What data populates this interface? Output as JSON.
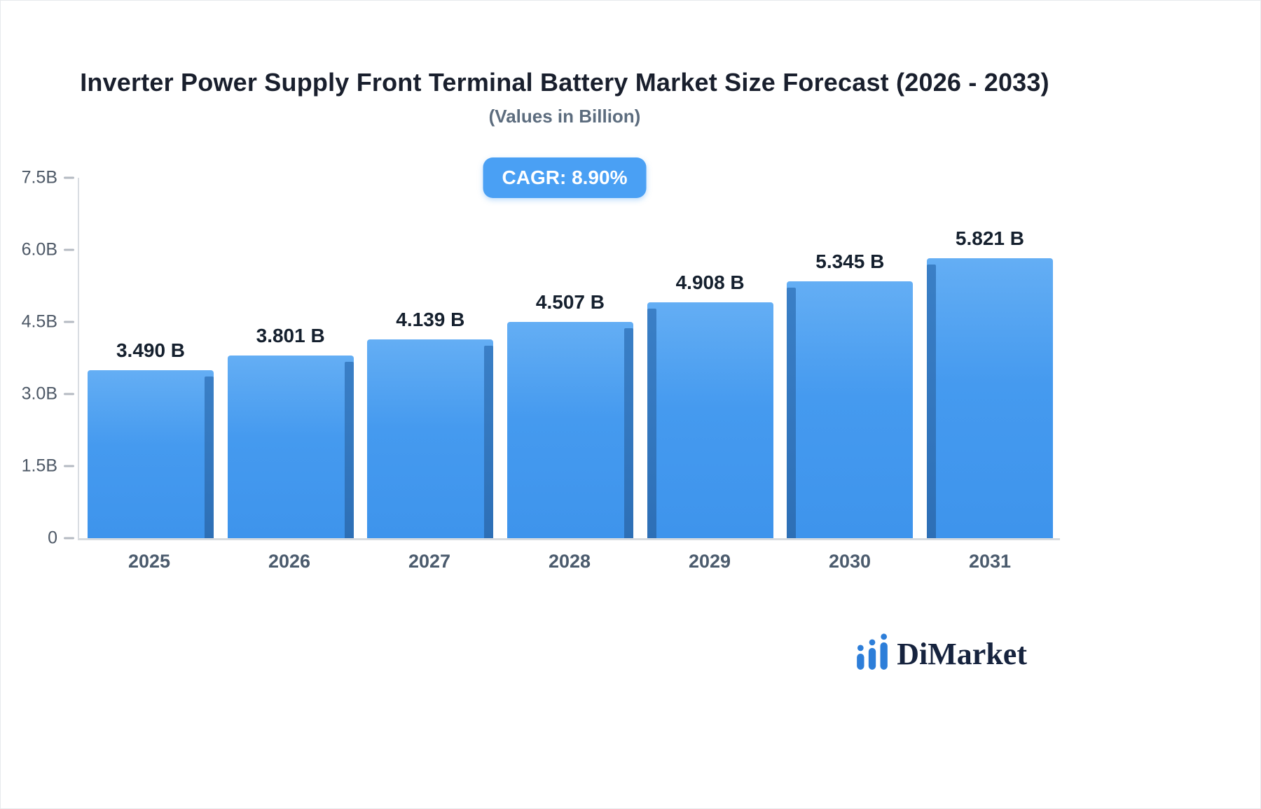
{
  "header": {
    "title": "Inverter Power Supply Front Terminal Battery Market Size Forecast (2026 - 2033)",
    "subtitle": "(Values in Billion)",
    "cagr_badge": "CAGR: 8.90%"
  },
  "brand": {
    "name": "DiMarket"
  },
  "chart_data": {
    "type": "bar",
    "title": "Inverter Power Supply Front Terminal Battery Market Size Forecast (2026 - 2033)",
    "subtitle": "(Values in Billion)",
    "annotation": "CAGR: 8.90%",
    "categories": [
      "2025",
      "2026",
      "2027",
      "2028",
      "2029",
      "2030",
      "2031"
    ],
    "values": [
      3.49,
      3.801,
      4.139,
      4.507,
      4.908,
      5.345,
      5.821
    ],
    "bar_labels": [
      "3.490 B",
      "3.801 B",
      "4.139 B",
      "4.507 B",
      "4.908 B",
      "5.345 B",
      "5.821 B"
    ],
    "xlabel": "",
    "ylabel": "",
    "ylim": [
      0,
      7.5
    ],
    "yticks": [
      {
        "label": "0",
        "value": 0
      },
      {
        "label": "1.5B",
        "value": 1.5
      },
      {
        "label": "3.0B",
        "value": 3.0
      },
      {
        "label": "4.5B",
        "value": 4.5
      },
      {
        "label": "6.0B",
        "value": 6.0
      },
      {
        "label": "7.5B",
        "value": 7.5
      }
    ],
    "grid": false,
    "legend": "none",
    "colors": {
      "bar_fill_top": "#64aef4",
      "bar_fill_bottom": "#3e94ec",
      "bar_side_shade": "#2d6fb6",
      "badge_background": "#4aa0f4",
      "badge_text": "#ffffff",
      "title_text": "#191f2d",
      "subtitle_text": "#5c6c7e",
      "axis_line": "#d7dbdf"
    }
  }
}
